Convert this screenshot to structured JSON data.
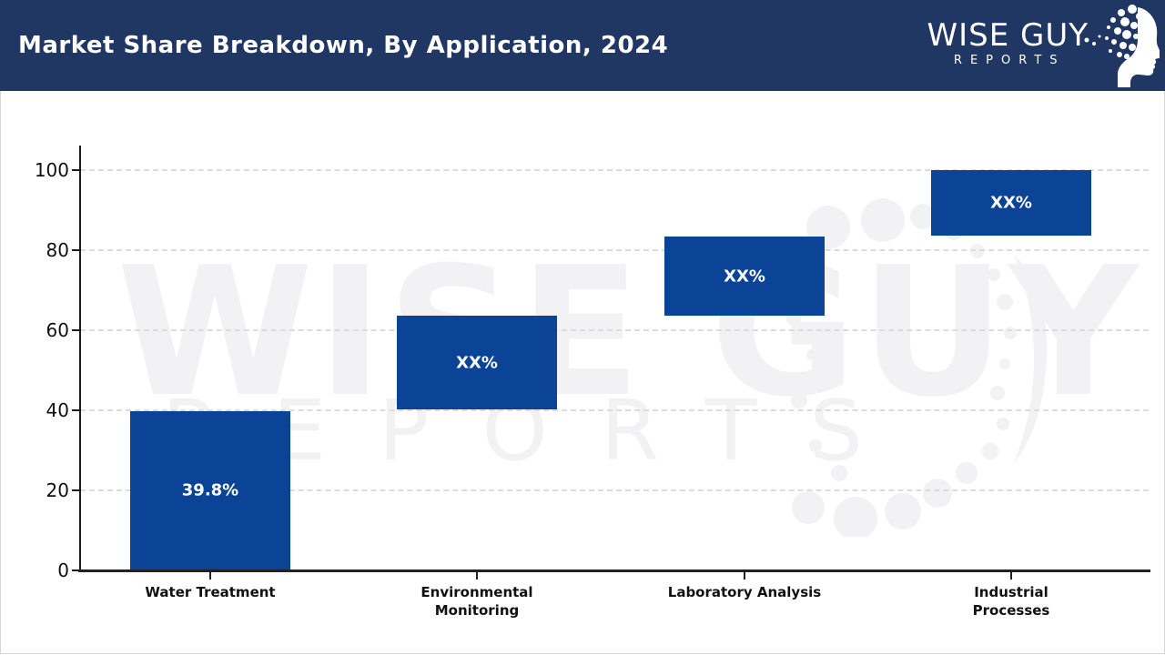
{
  "header": {
    "title": "Market Share Breakdown, By Application, 2024"
  },
  "logo": {
    "wordmark": "WISE GUY",
    "subtext": "REPORTS",
    "icon": "dotted-head-profile-icon"
  },
  "watermark": {
    "wordmark": "WISE GUY",
    "subtext": "REPORTS",
    "icon": "dotted-head-profile-icon"
  },
  "colors": {
    "header_bg": "#203663",
    "bar_fill": "#0b4397",
    "bar_label_text": "#ffffff",
    "gridline": "#dcdcdc",
    "axis": "#1a1a1a",
    "watermark": "#f2f2f4"
  },
  "chart_data": {
    "type": "bar",
    "subtype": "waterfall",
    "title": "Market Share Breakdown, By Application, 2024",
    "categories": [
      "Water Treatment",
      "Environmental Monitoring",
      "Laboratory Analysis",
      "Industrial Processes"
    ],
    "series": [
      {
        "name": "Market Share (%)",
        "segments": [
          {
            "from": 0,
            "to": 39.8,
            "label": "39.8%"
          },
          {
            "from": 40.2,
            "to": 63.6,
            "label": "XX%"
          },
          {
            "from": 63.6,
            "to": 83.3,
            "label": "XX%"
          },
          {
            "from": 83.6,
            "to": 100,
            "label": "XX%"
          }
        ]
      }
    ],
    "xlabel": "",
    "ylabel": "",
    "ylim": [
      0,
      100
    ],
    "yticks": [
      0,
      20,
      40,
      60,
      80,
      100
    ],
    "grid": "dashed-horizontal",
    "legend": "none"
  }
}
